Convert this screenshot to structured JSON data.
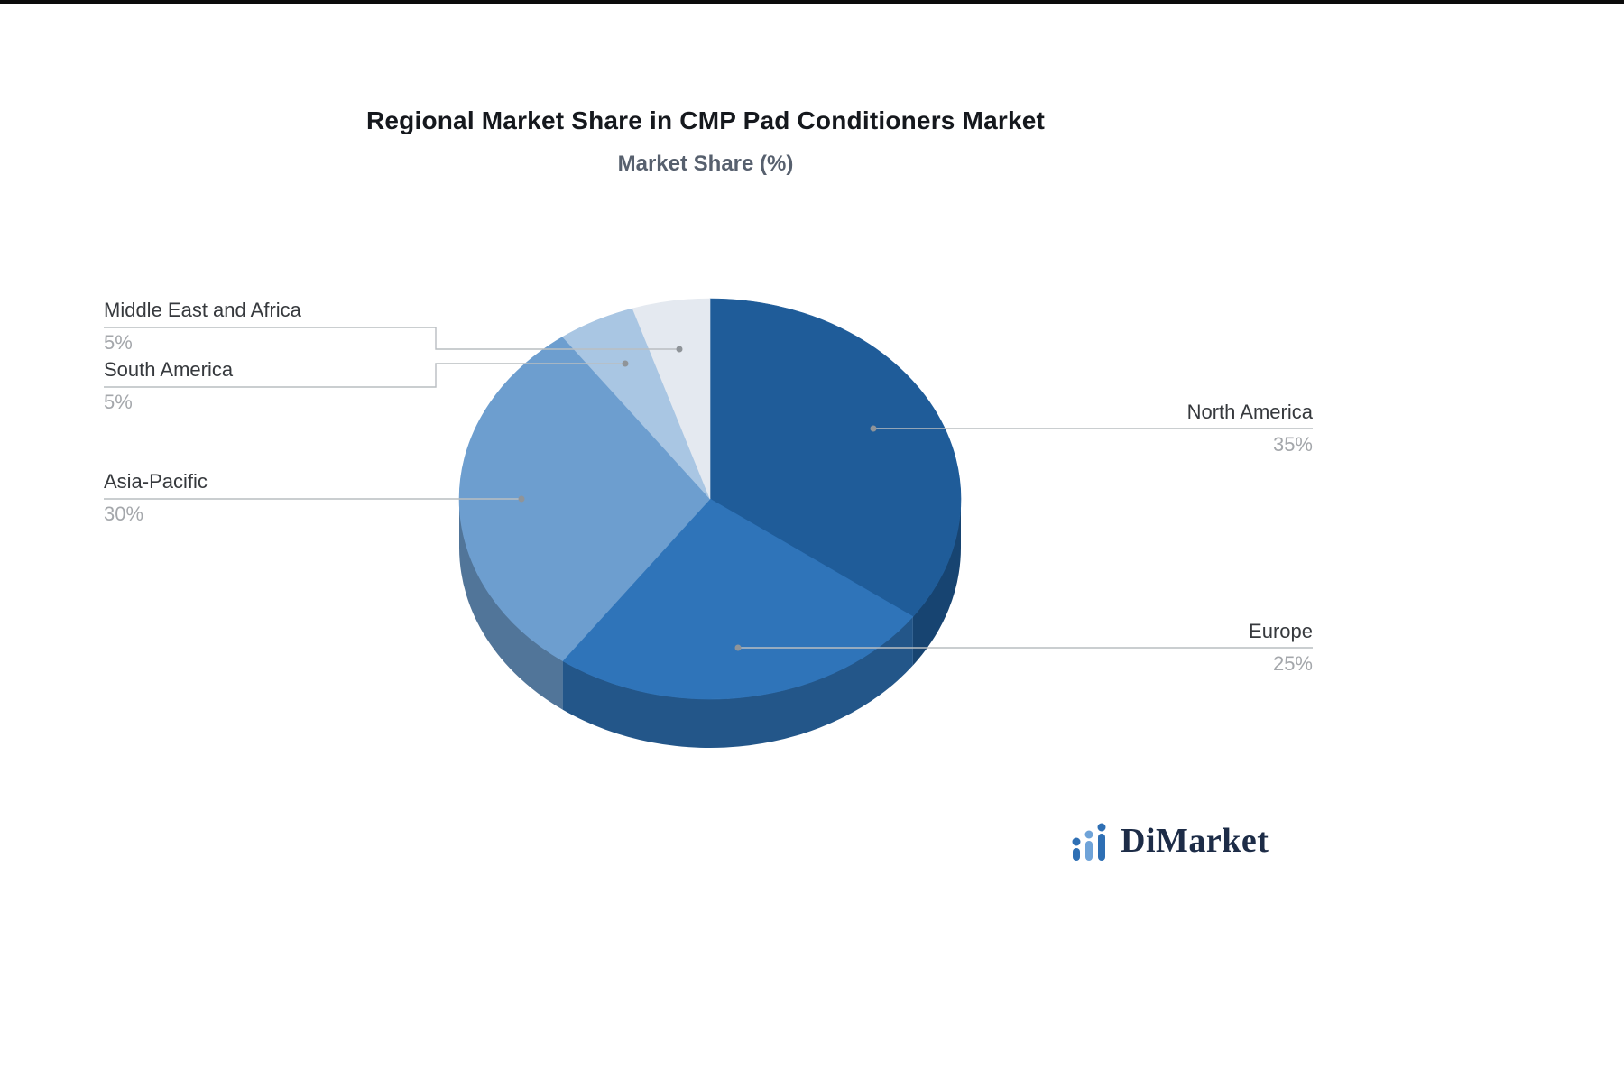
{
  "title": "Regional Market Share in CMP Pad Conditioners Market",
  "subtitle": "Market Share (%)",
  "chart_data": {
    "type": "pie",
    "title": "Regional Market Share in CMP Pad Conditioners Market",
    "subtitle": "Market Share (%)",
    "unit": "%",
    "categories": [
      "North America",
      "Europe",
      "Asia-Pacific",
      "South America",
      "Middle East and Africa"
    ],
    "values": [
      35,
      25,
      30,
      5,
      5
    ],
    "colors": [
      "#1f5c99",
      "#2f74b9",
      "#6d9ecf",
      "#a9c6e3",
      "#e4e9f0"
    ],
    "start_angle_deg": -90,
    "direction": "clockwise",
    "effect": "3d",
    "legend_position": "callout-labels",
    "labels": [
      {
        "name": "North America",
        "value": "35%",
        "side": "right"
      },
      {
        "name": "Europe",
        "value": "25%",
        "side": "right"
      },
      {
        "name": "Asia-Pacific",
        "value": "30%",
        "side": "left"
      },
      {
        "name": "South America",
        "value": "5%",
        "side": "left"
      },
      {
        "name": "Middle East and Africa",
        "value": "5%",
        "side": "left"
      }
    ]
  },
  "logo": {
    "text": "DiMarket"
  }
}
